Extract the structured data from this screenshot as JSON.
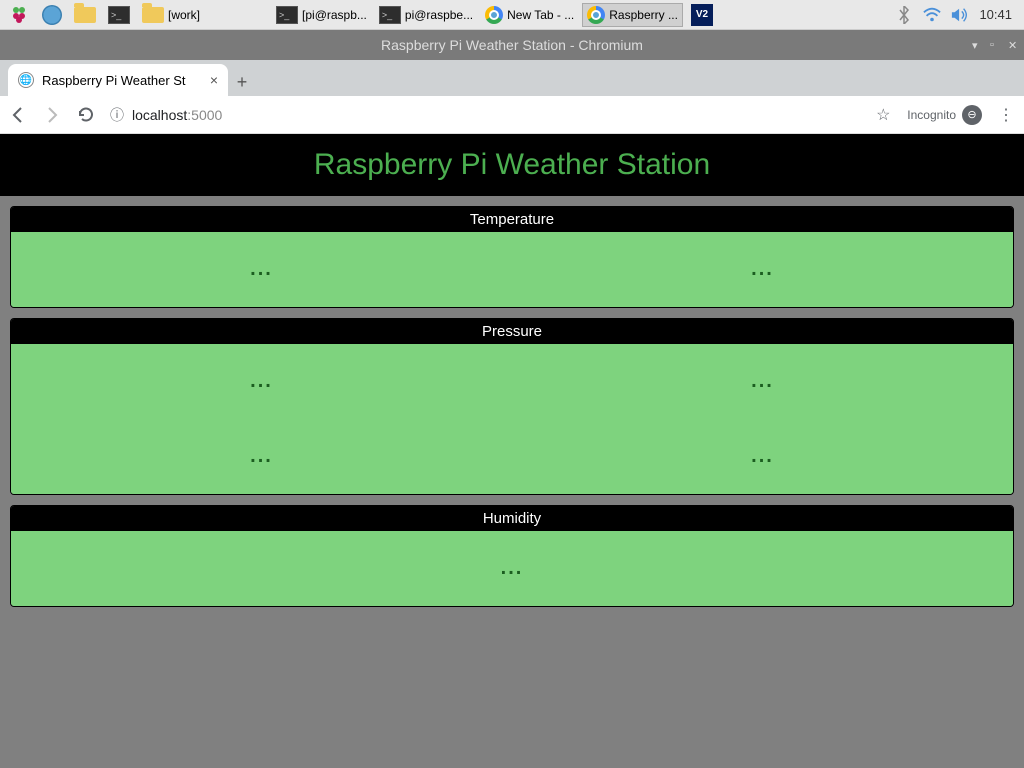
{
  "taskbar": {
    "items": [
      {
        "label": "",
        "icon": "raspberry"
      },
      {
        "label": "",
        "icon": "globe"
      },
      {
        "label": "",
        "icon": "folder"
      },
      {
        "label": "",
        "icon": "terminal"
      },
      {
        "label": "[work]",
        "icon": "folder"
      },
      {
        "label": "[pi@raspb...",
        "icon": "terminal"
      },
      {
        "label": "pi@raspbe...",
        "icon": "terminal"
      },
      {
        "label": "New Tab - ...",
        "icon": "chromium"
      },
      {
        "label": "Raspberry ...",
        "icon": "chromium",
        "active": true
      },
      {
        "label": "",
        "icon": "vnc"
      }
    ],
    "clock": "10:41"
  },
  "window": {
    "title": "Raspberry Pi Weather Station - Chromium"
  },
  "browser": {
    "tab_title": "Raspberry Pi Weather St",
    "url_host": "localhost",
    "url_port": ":5000",
    "incognito_label": "Incognito"
  },
  "page": {
    "title": "Raspberry Pi Weather Station",
    "accent_color": "#4caf50",
    "card_bg": "#7ed37e",
    "cards": [
      {
        "title": "Temperature",
        "rows": [
          [
            "...",
            "..."
          ]
        ]
      },
      {
        "title": "Pressure",
        "rows": [
          [
            "...",
            "..."
          ],
          [
            "...",
            "..."
          ]
        ]
      },
      {
        "title": "Humidity",
        "rows": [
          [
            "..."
          ]
        ]
      }
    ]
  }
}
